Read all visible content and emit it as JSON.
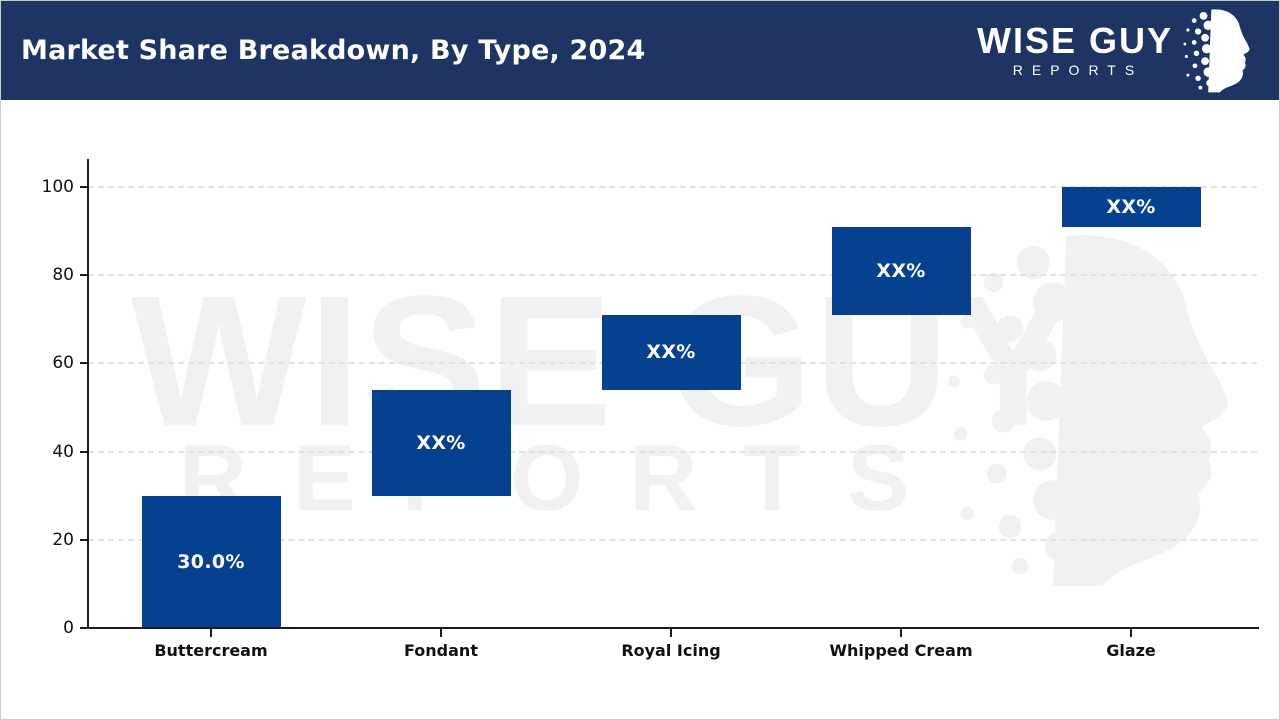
{
  "header": {
    "title": "Market Share Breakdown, By Type, 2024",
    "logo": {
      "line1": "WISE GUY",
      "line2": "REPORTS"
    }
  },
  "watermark": {
    "line1": "WISE GUY",
    "line2": "REPORTS"
  },
  "colors": {
    "header_bg": "#1e3462",
    "bar_blue": "#05418f",
    "axis": "#1a1a1a",
    "gridline": "#e2e2e2",
    "bar_label": "#ffffff",
    "watermark": "#f1f1f3"
  },
  "chart_data": {
    "type": "bar",
    "subtype": "floating-waterfall",
    "title": "Market Share Breakdown, By Type, 2024",
    "xlabel": "",
    "ylabel": "",
    "categories": [
      "Buttercream",
      "Fondant",
      "Royal Icing",
      "Whipped Cream",
      "Glaze"
    ],
    "bars": [
      {
        "category": "Buttercream",
        "start": 0,
        "end": 30,
        "label": "30.0%"
      },
      {
        "category": "Fondant",
        "start": 30,
        "end": 54,
        "label": "XX%"
      },
      {
        "category": "Royal Icing",
        "start": 54,
        "end": 71,
        "label": "XX%"
      },
      {
        "category": "Whipped Cream",
        "start": 71,
        "end": 91,
        "label": "XX%"
      },
      {
        "category": "Glaze",
        "start": 91,
        "end": 100,
        "label": "XX%"
      }
    ],
    "yticks": [
      0,
      20,
      40,
      60,
      80,
      100
    ],
    "ylim": [
      0,
      106
    ],
    "grid": "horizontal-dashed",
    "legend": "none"
  }
}
